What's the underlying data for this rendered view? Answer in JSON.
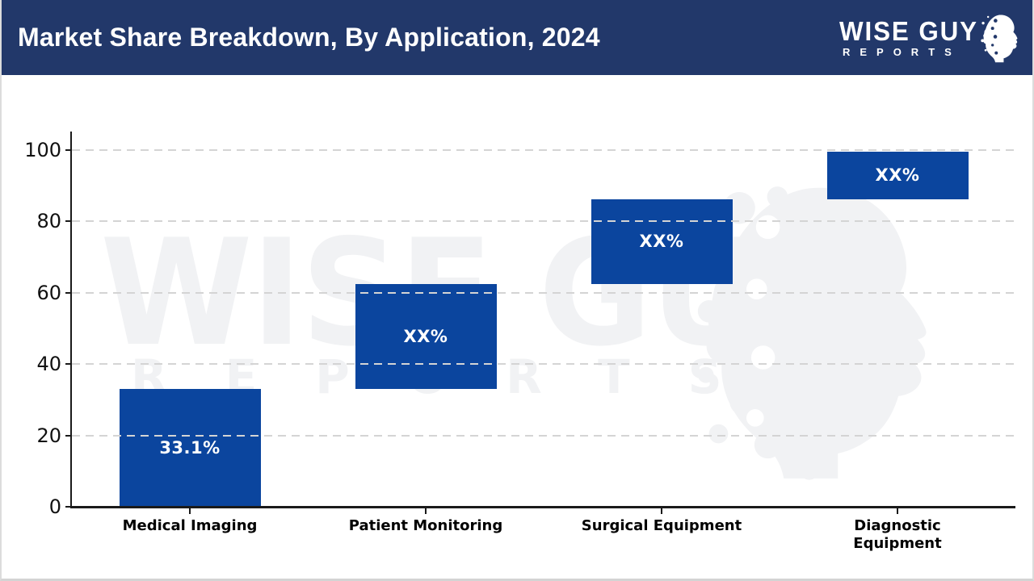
{
  "header": {
    "title": "Market Share Breakdown, By Application, 2024",
    "background_color": "#22386a",
    "logo": {
      "wordmark": "WISE GUY",
      "subtext": "REPORTS",
      "head_icon": "head-profile-dots-icon"
    }
  },
  "watermark": {
    "wordmark": "WISE GUY",
    "subtext": "REPORTS",
    "head_graphic": "head-profile-dots-watermark",
    "color": "#f1f2f4"
  },
  "chart_data": {
    "type": "waterfall",
    "title": "Market Share Breakdown, By Application, 2024",
    "xlabel": "",
    "ylabel": "",
    "categories": [
      "Medical Imaging",
      "Patient Monitoring",
      "Surgical Equipment",
      "Diagnostic Equipment"
    ],
    "segments": [
      {
        "category": "Medical Imaging",
        "axis_label": "Medical Imaging",
        "start": 0,
        "end": 33.1,
        "label": "33.1%"
      },
      {
        "category": "Patient Monitoring",
        "axis_label": "Patient Monitoring",
        "start": 33.1,
        "end": 62.4,
        "label": "XX%"
      },
      {
        "category": "Surgical Equipment",
        "axis_label": "Surgical Equipment",
        "start": 62.4,
        "end": 86.3,
        "label": "XX%"
      },
      {
        "category": "Diagnostic Equipment",
        "axis_label": "Diagnostic\nEquipment",
        "start": 86.3,
        "end": 99.5,
        "label": "XX%"
      }
    ],
    "y_ticks": [
      0,
      20,
      40,
      60,
      80,
      100
    ],
    "y_tick_labels": [
      "0",
      "20",
      "40",
      "60",
      "80",
      "100"
    ],
    "ylim": [
      0,
      105
    ],
    "bar_color": "#0b459e",
    "bar_label_color": "#ffffff",
    "grid": "horizontal dashed, drawn above bars",
    "grid_color": "#d4d4d4",
    "legend": "none"
  }
}
